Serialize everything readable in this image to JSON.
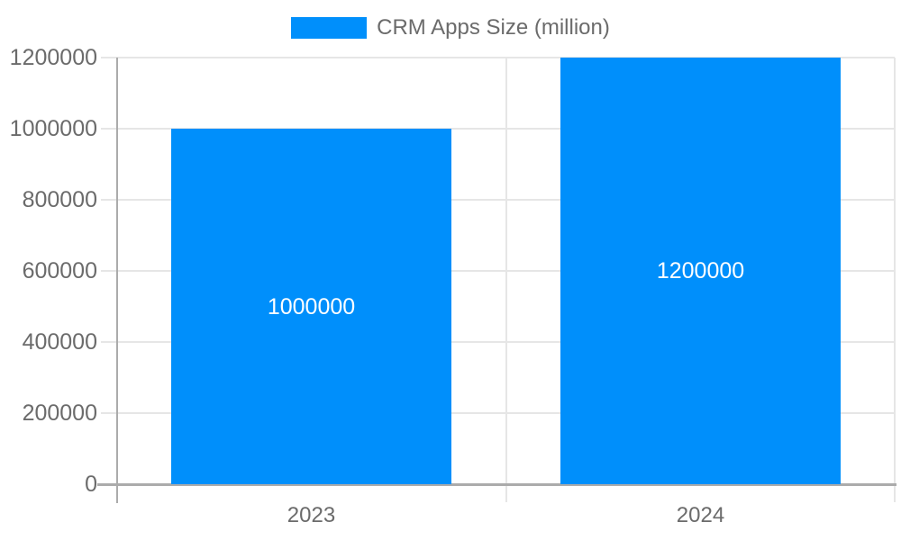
{
  "chart_data": {
    "type": "bar",
    "title": "",
    "xlabel": "",
    "ylabel": "",
    "legend": {
      "position": "top",
      "label": "CRM Apps Size (million)"
    },
    "categories": [
      "2023",
      "2024"
    ],
    "series": [
      {
        "name": "CRM Apps Size (million)",
        "values": [
          1000000,
          1200000
        ]
      }
    ],
    "values": [
      1000000,
      1200000
    ],
    "bar_labels": [
      "1000000",
      "1200000"
    ],
    "ylim": [
      0,
      1200000
    ],
    "ytick_step": 200000,
    "yticks": [
      "1200000",
      "1000000",
      "800000",
      "600000",
      "400000",
      "200000",
      "0"
    ],
    "grid": true,
    "colors": {
      "bar": "#008FFB",
      "axis_line": "#ababab",
      "gridline": "#e6e6e6",
      "axis_text": "#6b6b6b",
      "bar_label_text": "#ffffff"
    }
  }
}
